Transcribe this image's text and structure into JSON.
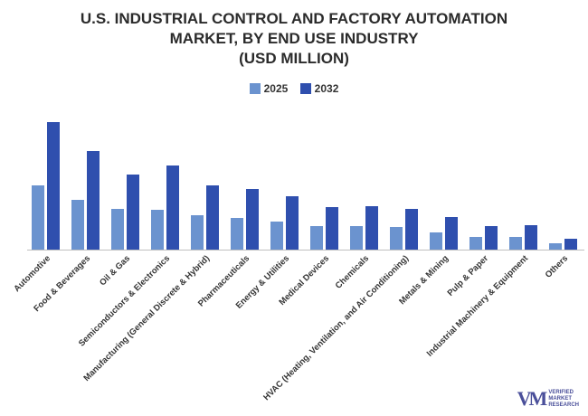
{
  "chart_data": {
    "type": "bar",
    "title_lines": [
      "U.S. INDUSTRIAL CONTROL AND FACTORY AUTOMATION",
      "MARKET, BY END USE INDUSTRY",
      "(USD MILLION)"
    ],
    "categories": [
      "Automotive",
      "Food & Beverages",
      "Oil & Gas",
      "Semiconductors & Electronics",
      "Manufacturing (General Discrete & Hybrid)",
      "Pharmaceuticals",
      "Energy & Utilities",
      "Medical Devices",
      "Chemicals",
      "HVAC (Heating, Ventilation, and Air Conditioning)",
      "Metals & Mining",
      "Pulp & Paper",
      "Industrial Machinery & Equipment",
      "Others"
    ],
    "series": [
      {
        "name": "2025",
        "color": "#6b93cf",
        "values": [
          71,
          55,
          45,
          44,
          38,
          35,
          31,
          26,
          26,
          25,
          19,
          14,
          14,
          7
        ]
      },
      {
        "name": "2032",
        "color": "#2f4fae",
        "values": [
          141,
          109,
          83,
          93,
          71,
          67,
          59,
          47,
          48,
          45,
          36,
          26,
          27,
          12
        ]
      }
    ],
    "xlabel": "",
    "ylabel": "",
    "ylim": [
      0,
      150
    ],
    "grid": false,
    "legend_position": "top-center"
  },
  "logo": {
    "mark": "VM",
    "line1": "VERIFIED",
    "line2": "MARKET",
    "line3": "RESEARCH"
  }
}
